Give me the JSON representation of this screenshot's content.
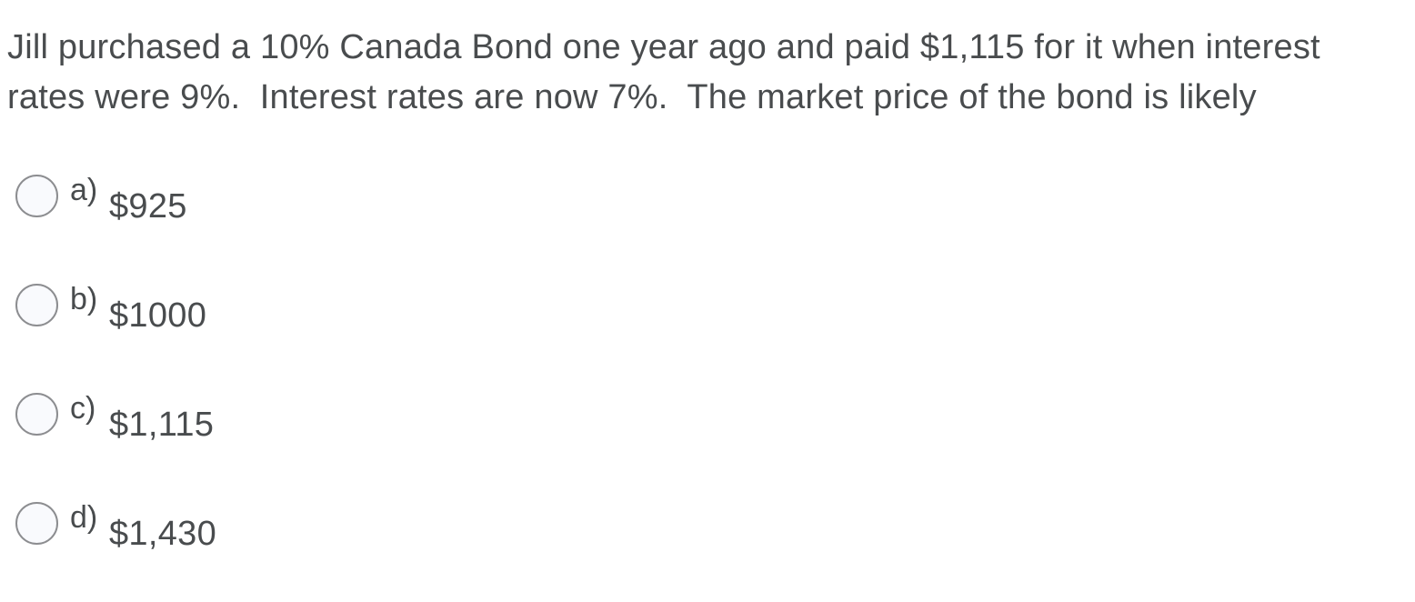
{
  "page": {
    "background_color": "#ffffff",
    "text_color": "#494c4e"
  },
  "question": {
    "text": "Jill purchased a 10% Canada Bond one year ago and paid $1,115 for it when interest\nrates were 9%.  Interest rates are now 7%.  The market price of the bond is likely"
  },
  "options": [
    {
      "letter": "a)",
      "value": "$925",
      "selected": false
    },
    {
      "letter": "b)",
      "value": "$1000",
      "selected": false
    },
    {
      "letter": "c)",
      "value": "$1,115",
      "selected": false
    },
    {
      "letter": "d)",
      "value": "$1,430",
      "selected": false
    }
  ],
  "radio_style": {
    "border_color": "#8c8d90",
    "fill_color": "#f9fafd"
  }
}
